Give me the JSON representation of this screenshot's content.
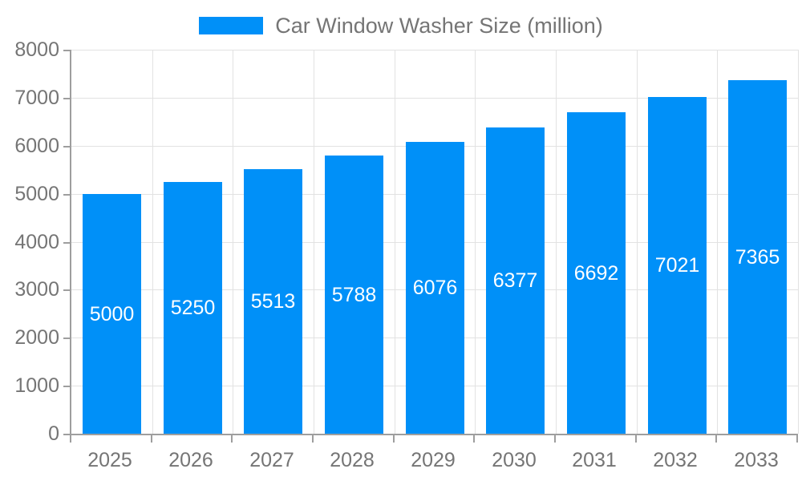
{
  "chart_data": {
    "type": "bar",
    "title": "Car Window Washer Size (million)",
    "categories": [
      "2025",
      "2026",
      "2027",
      "2028",
      "2029",
      "2030",
      "2031",
      "2032",
      "2033"
    ],
    "values": [
      5000,
      5250,
      5513,
      5788,
      6076,
      6377,
      6692,
      7021,
      7365
    ],
    "xlabel": "",
    "ylabel": "",
    "ylim": [
      0,
      8000
    ],
    "y_ticks": [
      0,
      1000,
      2000,
      3000,
      4000,
      5000,
      6000,
      7000,
      8000
    ],
    "grid": true,
    "legend_position": "top",
    "bar_color": "#0090F8",
    "value_label_color": "#FFFFFF"
  },
  "colors": {
    "background": "#FFFFFF",
    "grid_line": "#E2E2E2",
    "axis_line": "#9E9E9E",
    "axis_text": "#757575"
  }
}
